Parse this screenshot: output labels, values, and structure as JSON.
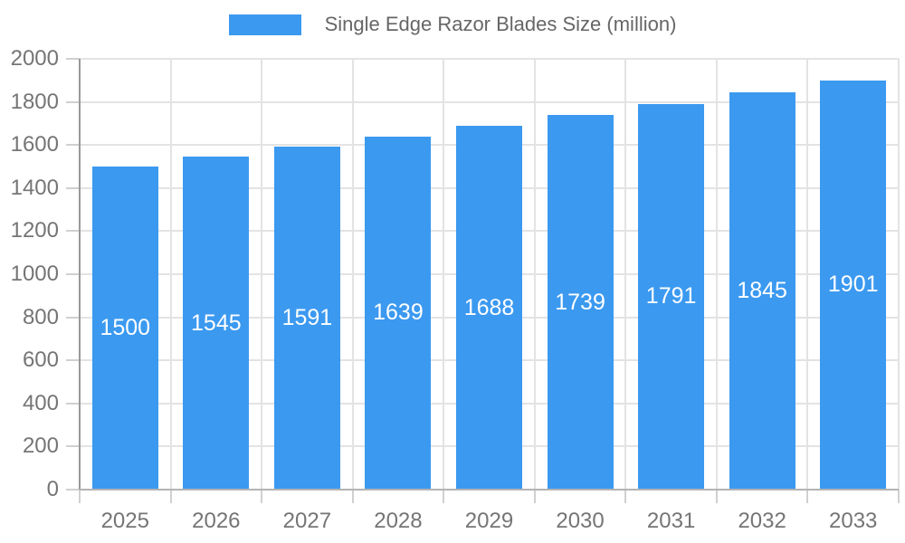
{
  "legend": {
    "label": "Single Edge Razor Blades Size (million)"
  },
  "colors": {
    "bar": "#3B99F0",
    "value_label": "#FFFFFF",
    "axis_label": "#757575",
    "legend_text": "#666666",
    "grid": "#E3E3E3",
    "y_axis": "#999999",
    "x_axis": "#B3B3B3",
    "tick": "#D0D0D0"
  },
  "chart_data": {
    "type": "bar",
    "title": "Single Edge Razor Blades Size (million)",
    "categories": [
      "2025",
      "2026",
      "2027",
      "2028",
      "2029",
      "2030",
      "2031",
      "2032",
      "2033"
    ],
    "values": [
      1500,
      1545,
      1591,
      1639,
      1688,
      1739,
      1791,
      1845,
      1901
    ],
    "series_name": "Single Edge Razor Blades Size (million)",
    "xlabel": "",
    "ylabel": "",
    "ylim": [
      0,
      2000
    ],
    "ytick_step": 200,
    "ytick_labels": [
      "0",
      "200",
      "400",
      "600",
      "800",
      "1000",
      "1200",
      "1400",
      "1600",
      "1800",
      "2000"
    ],
    "grid": "both",
    "legend_position": "top",
    "value_labels": "inside-center"
  }
}
